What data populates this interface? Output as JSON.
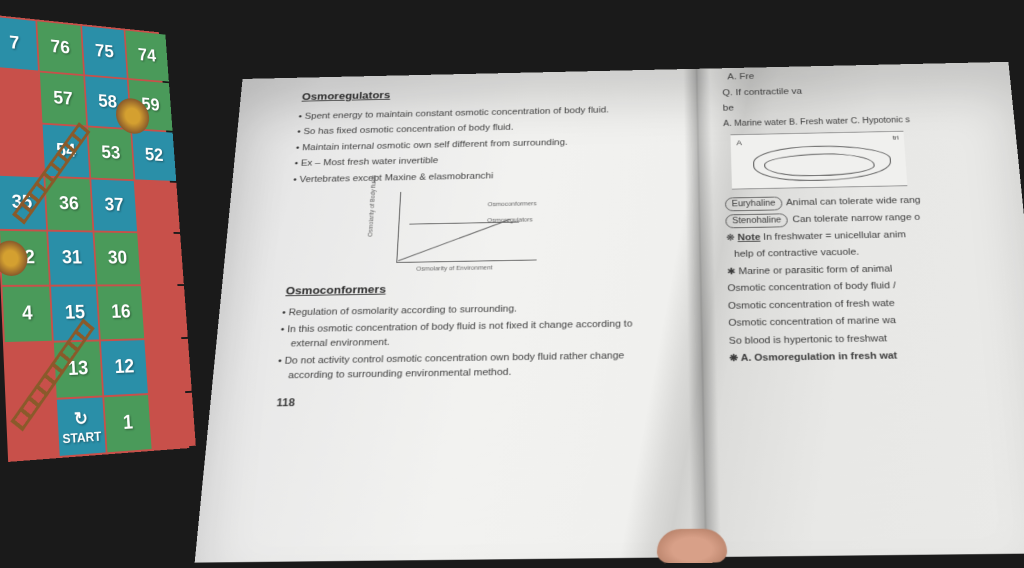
{
  "board": {
    "rows": [
      [
        "7",
        "76",
        "75",
        "74"
      ],
      [
        "",
        "57",
        "58",
        "59"
      ],
      [
        "",
        "54",
        "53",
        "52"
      ],
      [
        "35",
        "36",
        "37",
        ""
      ],
      [
        "32",
        "31",
        "30",
        ""
      ],
      [
        "4",
        "15",
        "16",
        ""
      ],
      [
        "",
        "13",
        "12",
        ""
      ],
      [
        "",
        "",
        "1",
        ""
      ]
    ],
    "start_label": "START",
    "start_icon": "↻",
    "colors": {
      "blue": "#2a8fa8",
      "green": "#4a9a5a",
      "red": "#c8504a"
    },
    "pattern": [
      [
        "blue",
        "green",
        "blue",
        "green"
      ],
      [
        "red",
        "green",
        "blue",
        "green"
      ],
      [
        "red",
        "blue",
        "green",
        "blue"
      ],
      [
        "blue",
        "green",
        "blue",
        "red"
      ],
      [
        "green",
        "blue",
        "green",
        "red"
      ],
      [
        "green",
        "blue",
        "green",
        "red"
      ],
      [
        "red",
        "green",
        "blue",
        "red"
      ],
      [
        "red",
        "start",
        "green",
        "red"
      ]
    ]
  },
  "left_page": {
    "section1_title": "Osmoregulators",
    "section1_bullets": [
      "Spent energy to maintain constant osmotic concentration of body fluid.",
      "So has fixed osmotic concentration of body fluid.",
      "Maintain internal osmotic own self different from surrounding.",
      "Ex – Most fresh water invertible",
      "Vertebrates except Maxine & elasmobranchi"
    ],
    "chart": {
      "type": "line",
      "y_label": "Osmolarity of Body fluids",
      "x_label": "Osmolarity of Environment",
      "series": [
        {
          "label": "Osmoconformers",
          "style": "diagonal",
          "color": "#555555"
        },
        {
          "label": "Osmoregulators",
          "style": "flat",
          "color": "#555555"
        }
      ],
      "axis_color": "#555555",
      "label_fontsize": 7
    },
    "section2_title": "Osmoconformers",
    "section2_bullets": [
      "Regulation of osmolarity according to surrounding.",
      "In this osmotic concentration of body fluid is not fixed it change according to external environment.",
      "Do not activity control osmotic concentration own body fluid rather change according to surrounding environmental method."
    ],
    "page_number": "118"
  },
  "right_page": {
    "top_fragment_1": "A. Fre",
    "top_fragment_2": "Q. If contractile va",
    "top_fragment_3": "be",
    "answer_line": "A. Marine water  B. Fresh water  C. Hypotonic s",
    "diagram_letters": {
      "A": "A",
      "tri": "tri"
    },
    "eury_tag": "Euryhaline",
    "eury_text": "Animal can tolerate wide rang",
    "steno_tag": "Stenohaline",
    "steno_text": "Can tolerate narrow range o",
    "note_prefix": "Note",
    "note_line1": "In freshwater = unicellular anim",
    "note_line2": "help of contractive vacuole.",
    "star1": "Marine or parasitic form of animal",
    "line_a": "Osmotic concentration of body fluid /",
    "line_b": "Osmotic concentration of fresh wate",
    "line_c": "Osmotic concentration of marine wa",
    "line_d": "So blood is hypertonic to freshwat",
    "answer_bold": "A. Osmoregulation in fresh wat"
  }
}
